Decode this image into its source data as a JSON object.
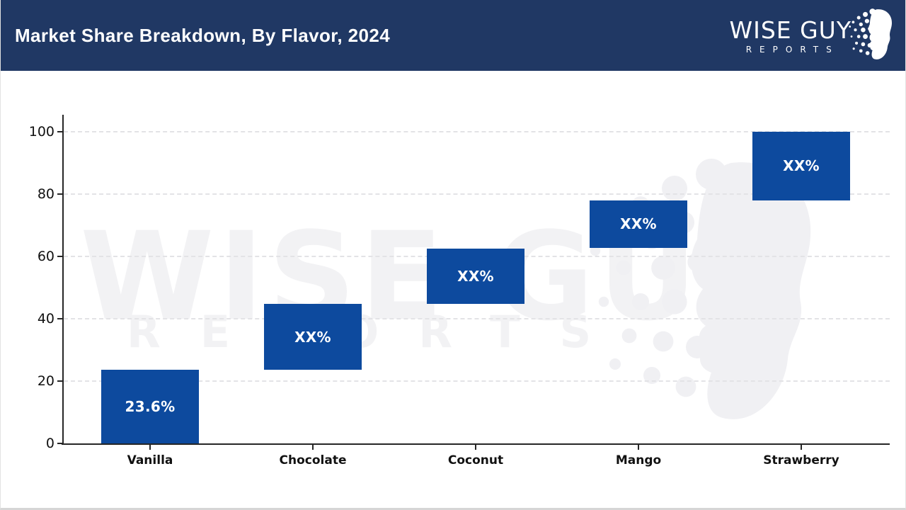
{
  "header": {
    "title": "Market Share Breakdown, By Flavor, 2024",
    "logo": {
      "line1": "WISE GUY",
      "line2": "REPORTS"
    }
  },
  "watermark": {
    "line1": "WISE GUY",
    "line2": "REPORTS"
  },
  "colors": {
    "header_bg": "#203864",
    "bar": "#0d4a9e",
    "bar_label": "#ffffff",
    "axis": "#262626",
    "grid": "#e3e3e6",
    "watermark": "#f2f2f4"
  },
  "chart_data": {
    "type": "waterfall-bar",
    "title": "Market Share Breakdown, By Flavor, 2024",
    "categories": [
      "Vanilla",
      "Chocolate",
      "Coconut",
      "Mango",
      "Strawberry"
    ],
    "segments": [
      {
        "category": "Vanilla",
        "start": 0,
        "end": 23.6,
        "label": "23.6%"
      },
      {
        "category": "Chocolate",
        "start": 23.6,
        "end": 44.8,
        "label": "XX%"
      },
      {
        "category": "Coconut",
        "start": 44.8,
        "end": 62.4,
        "label": "XX%"
      },
      {
        "category": "Mango",
        "start": 62.7,
        "end": 78.0,
        "label": "XX%"
      },
      {
        "category": "Strawberry",
        "start": 78.0,
        "end": 100.0,
        "label": "XX%"
      }
    ],
    "ylim": [
      0,
      100
    ],
    "yticks": [
      0,
      20,
      40,
      60,
      80,
      100
    ],
    "grid": "horizontal-dashed",
    "legend": "none",
    "bar_color": "#0d4a9e",
    "bar_label_color": "#ffffff"
  }
}
